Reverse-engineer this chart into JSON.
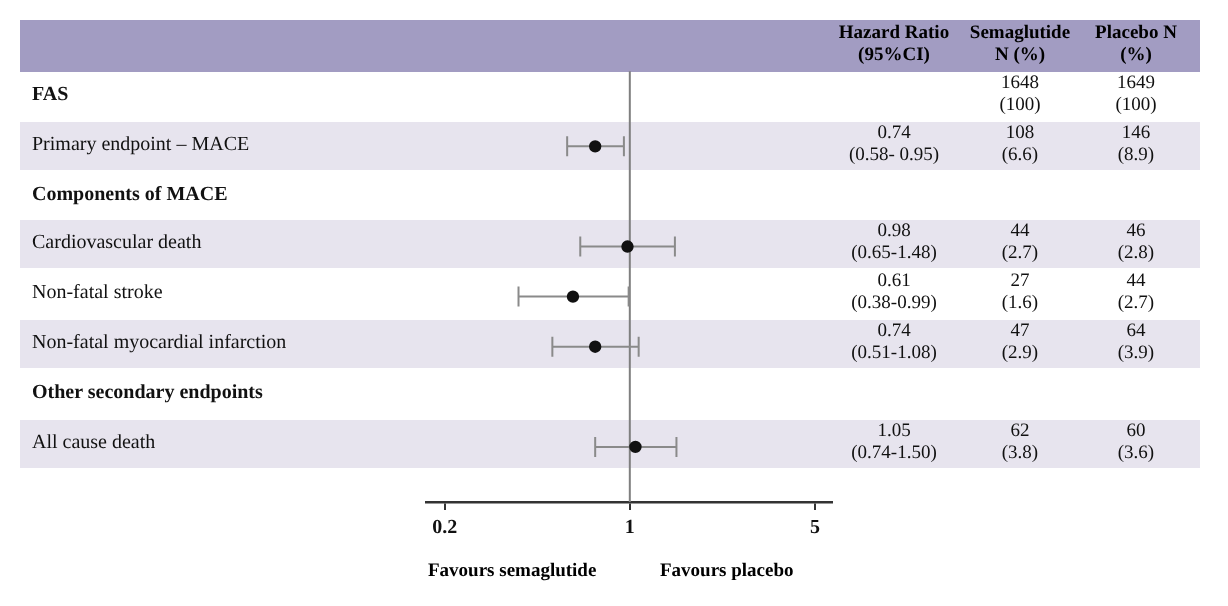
{
  "chart_data": {
    "type": "scatter",
    "orientation": "horizontal",
    "categories": [
      "FAS",
      "Primary endpoint – MACE",
      "Components of MACE",
      "Cardiovascular death",
      "Non-fatal stroke",
      "Non-fatal myocardial infarction",
      "Other secondary endpoints",
      "All cause death"
    ],
    "series": [
      {
        "color": "#111111",
        "values": [
          null,
          0.74,
          null,
          0.98,
          0.61,
          0.74,
          null,
          1.05
        ],
        "errors": [
          null,
          [
            0.58,
            0.95
          ],
          null,
          [
            0.65,
            1.48
          ],
          [
            0.38,
            0.99
          ],
          [
            0.51,
            1.08
          ],
          null,
          [
            0.74,
            1.5
          ]
        ],
        "value_labels": [
          null,
          "0.74 (0.58- 0.95)",
          null,
          "0.98 (0.65-1.48)",
          "0.61 (0.38-0.99)",
          "0.74 (0.51-1.08)",
          null,
          "1.05 (0.74-1.50)"
        ]
      }
    ],
    "log": "x",
    "xlim": [
      0.17,
      5.8
    ],
    "xticks": [
      0.2,
      1,
      5
    ],
    "grid": false,
    "marker": "circle",
    "ref_lines": [
      {
        "axis": "x",
        "value": 1,
        "color": "#7f7f7f"
      }
    ],
    "annotations": [
      "Hazard Ratio (95%CI)",
      "Semaglutide N (%)",
      "Placebo N (%)",
      "Favours semaglutide",
      "Favours placebo",
      "1648 (100)",
      "1649 (100)",
      "108 (6.6)",
      "146 (8.9)",
      "44 (2.7)",
      "46 (2.8)",
      "27 (1.6)",
      "44 (2.7)",
      "47 (2.9)",
      "64 (3.9)",
      "62 (3.8)",
      "60 (3.6)"
    ]
  }
}
